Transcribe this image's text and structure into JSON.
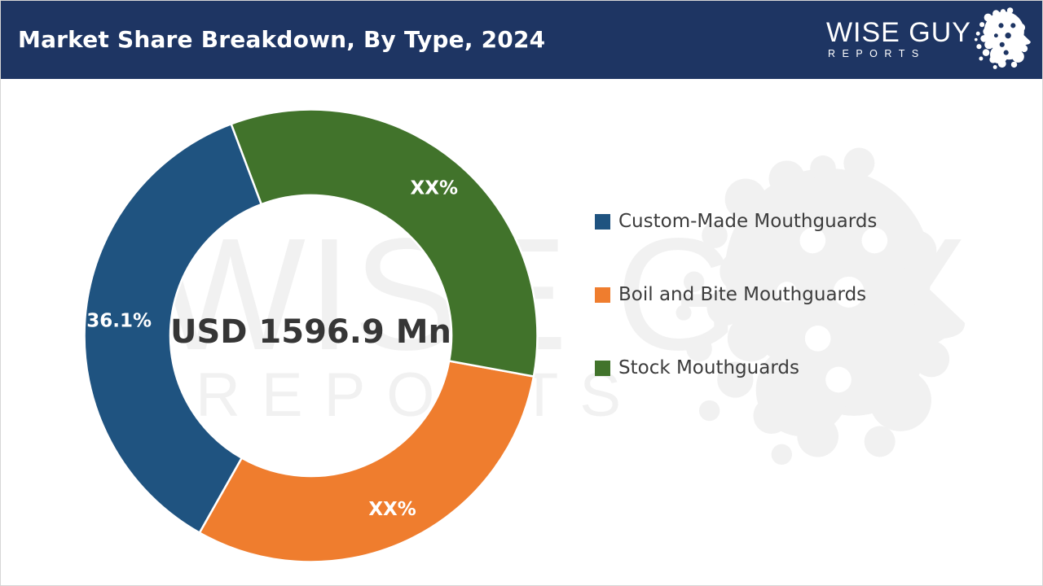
{
  "header": {
    "title": "Market Share Breakdown, By Type, 2024",
    "bg_color": "#1E3563",
    "logo": {
      "line1": "WISE GUY",
      "line2": "REPORTS"
    }
  },
  "watermark": {
    "line1": "WISE GUY",
    "line2": "REPORTS",
    "color": "#F1F1F1"
  },
  "chart_data": {
    "type": "pie",
    "donut": true,
    "title": "Market Share Breakdown, By Type, 2024",
    "center_label": "USD 1596.9 Mn",
    "start_angle_deg": 110.6,
    "counterclockwise": true,
    "legend_position": "right",
    "segments": [
      {
        "label": "Custom-Made Mouthguards",
        "display_pct": "36.1%",
        "value_pct": 36.1,
        "color": "#1F5380"
      },
      {
        "label": "Boil and Bite Mouthguards",
        "display_pct": "XX%",
        "value_pct": 30.3,
        "color": "#EF7D2E"
      },
      {
        "label": "Stock Mouthguards",
        "display_pct": "XX%",
        "value_pct": 33.6,
        "color": "#41732B"
      }
    ]
  }
}
